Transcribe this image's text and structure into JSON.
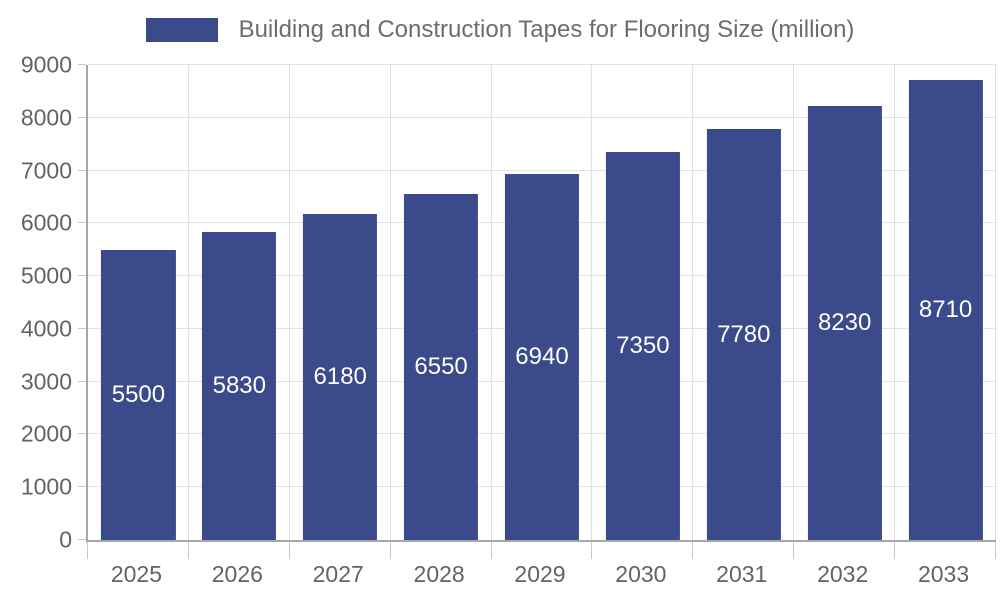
{
  "legend": {
    "label": "Building and Construction Tapes for Flooring Size (million)"
  },
  "colors": {
    "bar": "#3A4A8A",
    "grid": "#E2E2E2",
    "axis": "#A6A6A6",
    "tick": "#C9C9C9",
    "axis_label": "#636363",
    "legend_text": "#6D6D6D",
    "value_label": "#FFFFFF",
    "background": "#FFFFFF"
  },
  "chart_data": {
    "type": "bar",
    "title": "Building and Construction Tapes for Flooring Size (million)",
    "categories": [
      "2025",
      "2026",
      "2027",
      "2028",
      "2029",
      "2030",
      "2031",
      "2032",
      "2033"
    ],
    "values": [
      5500,
      5830,
      6180,
      6550,
      6940,
      7350,
      7780,
      8230,
      8710
    ],
    "xlabel": "",
    "ylabel": "",
    "ylim": [
      0,
      9000
    ],
    "ytick_step": 1000,
    "grid": true,
    "legend_position": "top",
    "value_labels": "inside-center"
  }
}
